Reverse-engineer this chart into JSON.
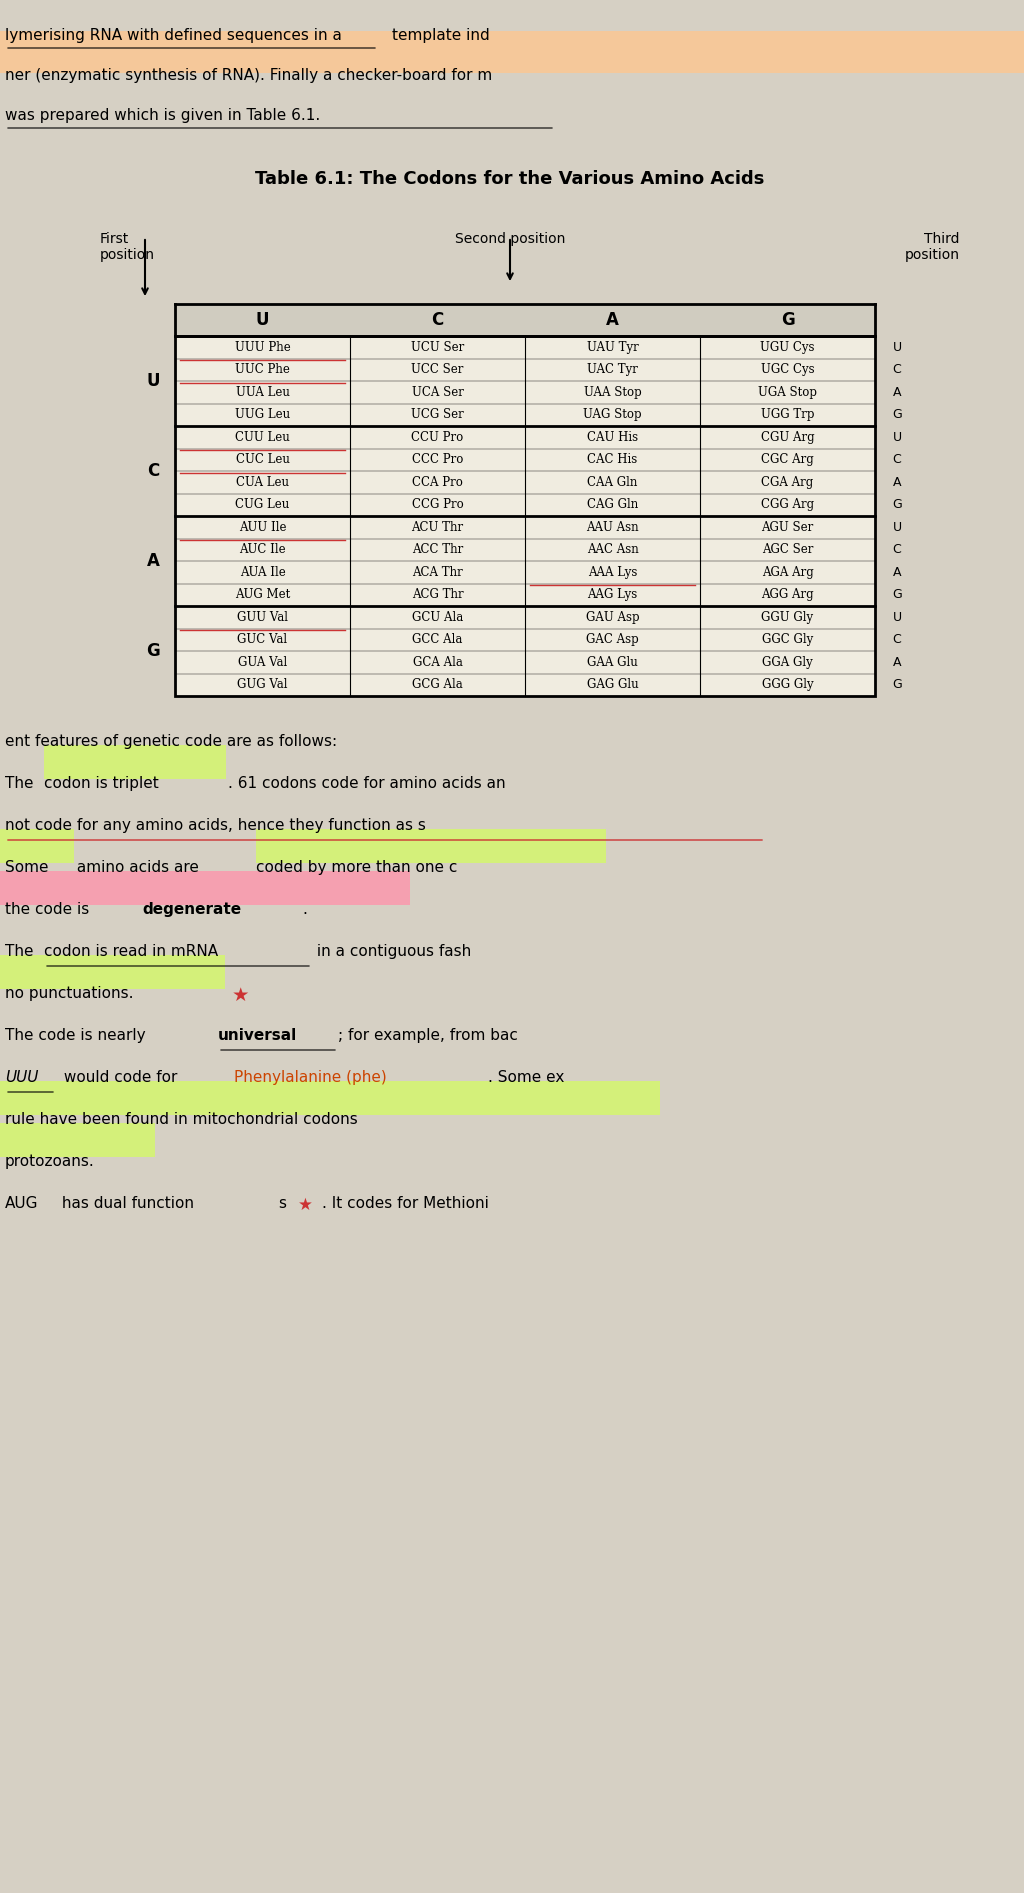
{
  "page_bg": "#d6d0c4",
  "cell_bg": "#f0ece0",
  "header_bg": "#d0ccc0",
  "title": "Table 6.1: The Codons for the Various Amino Acids",
  "col_headers": [
    "U",
    "C",
    "A",
    "G"
  ],
  "row_headers": [
    "U",
    "C",
    "A",
    "G"
  ],
  "third_position_labels": [
    "U",
    "C",
    "A",
    "G",
    "U",
    "C",
    "A",
    "G",
    "U",
    "C",
    "A",
    "G",
    "U",
    "C",
    "A",
    "G"
  ],
  "table_data": [
    [
      [
        "UUU Phe",
        "UUC Phe",
        "UUA Leu",
        "UUG Leu"
      ],
      [
        "UCU Ser",
        "UCC Ser",
        "UCA Ser",
        "UCG Ser"
      ],
      [
        "UAU Tyr",
        "UAC Tyr",
        "UAA Stop",
        "UAG Stop"
      ],
      [
        "UGU Cys",
        "UGC Cys",
        "UGA Stop",
        "UGG Trp"
      ]
    ],
    [
      [
        "CUU Leu",
        "CUC Leu",
        "CUA Leu",
        "CUG Leu"
      ],
      [
        "CCU Pro",
        "CCC Pro",
        "CCA Pro",
        "CCG Pro"
      ],
      [
        "CAU His",
        "CAC His",
        "CAA Gln",
        "CAG Gln"
      ],
      [
        "CGU Arg",
        "CGC Arg",
        "CGA Arg",
        "CGG Arg"
      ]
    ],
    [
      [
        "AUU Ile",
        "AUC Ile",
        "AUA Ile",
        "AUG Met"
      ],
      [
        "ACU Thr",
        "ACC Thr",
        "ACA Thr",
        "ACG Thr"
      ],
      [
        "AAU Asn",
        "AAC Asn",
        "AAA Lys",
        "AAG Lys"
      ],
      [
        "AGU Ser",
        "AGC Ser",
        "AGA Arg",
        "AGG Arg"
      ]
    ],
    [
      [
        "GUU Val",
        "GUC Val",
        "GUA Val",
        "GUG Val"
      ],
      [
        "GCU Ala",
        "GCC Ala",
        "GCA Ala",
        "GCG Ala"
      ],
      [
        "GAU Asp",
        "GAC Asp",
        "GAA Glu",
        "GAG Glu"
      ],
      [
        "GGU Gly",
        "GGC Gly",
        "GGA Gly",
        "GGG Gly"
      ]
    ]
  ],
  "red_underlined": [
    "UUU",
    "UUC",
    "CUU",
    "CUC",
    "AUU",
    "AAA",
    "GUU"
  ],
  "highlight_green": "#d4f07a",
  "highlight_pink": "#f5a0b0",
  "highlight_orange": "#f5c89a",
  "red_color": "#cc3333",
  "orange_text": "#cc4400"
}
